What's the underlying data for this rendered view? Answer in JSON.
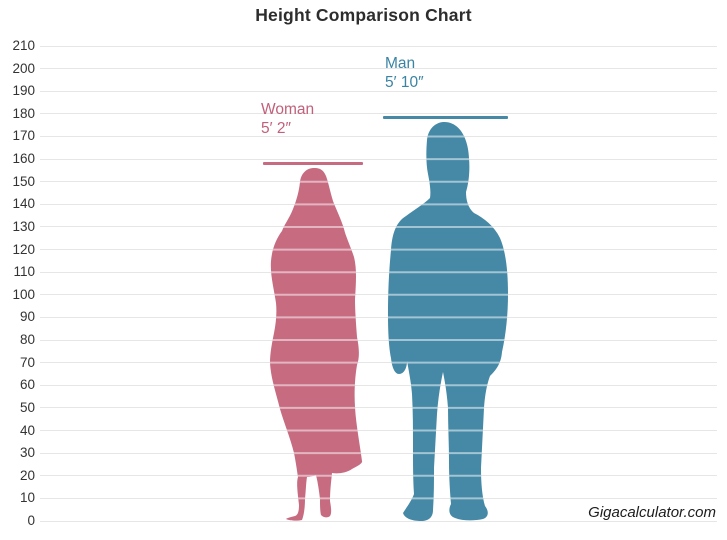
{
  "page": {
    "title": "Height Comparison Chart",
    "watermark": "Gigacalculator.com"
  },
  "chart_data": {
    "type": "bar",
    "style": "human-silhouette-height-comparison",
    "title": "Height Comparison Chart",
    "y_axis": {
      "min": 0,
      "max": 210,
      "step": 10,
      "unit": "cm",
      "ticks": [
        210,
        200,
        190,
        180,
        170,
        160,
        150,
        140,
        130,
        120,
        110,
        100,
        90,
        80,
        70,
        60,
        50,
        40,
        30,
        20,
        10,
        0
      ]
    },
    "grid": true,
    "legend_position": "none",
    "series": [
      {
        "name": "Woman",
        "height_label": "5′ 2″",
        "height_cm": 157.48,
        "color": "#c76b80",
        "label_color": "#c2607b"
      },
      {
        "name": "Man",
        "height_label": "5′ 10″",
        "height_cm": 177.8,
        "color": "#4589a6",
        "label_color": "#3a84a3"
      }
    ],
    "watermark": "Gigacalculator.com"
  }
}
